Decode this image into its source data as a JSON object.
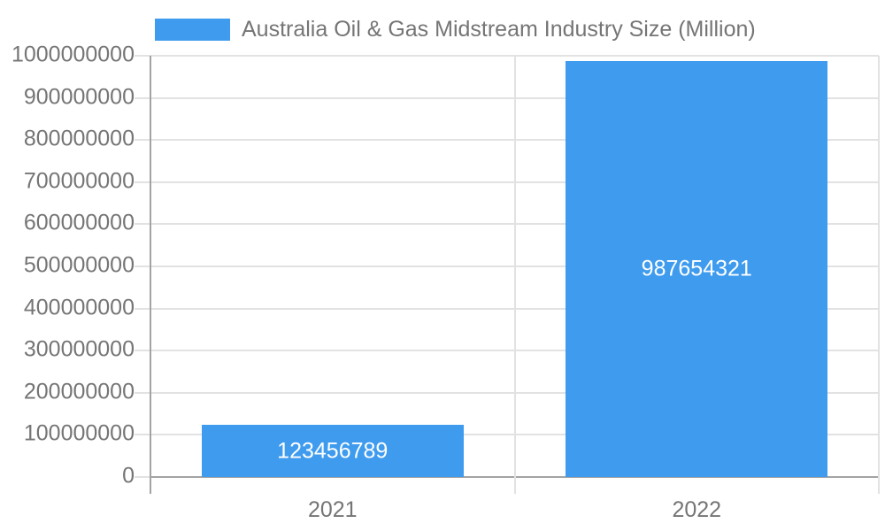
{
  "chart_data": {
    "type": "bar",
    "title": "Australia Oil & Gas Midstream Industry Size (Million)",
    "legend_position": "top",
    "legend_entries": [
      "Australia Oil & Gas Midstream Industry Size (Million)"
    ],
    "categories": [
      "2021",
      "2022"
    ],
    "series": [
      {
        "name": "Australia Oil & Gas Midstream Industry Size (Million)",
        "values": [
          123456789,
          987654321
        ]
      }
    ],
    "bar_value_labels": [
      "123456789",
      "987654321"
    ],
    "xlabel": "",
    "ylabel": "",
    "ylim": [
      0,
      1000000000
    ],
    "ytick_step": 100000000,
    "ytick_labels": [
      "0",
      "100000000",
      "200000000",
      "300000000",
      "400000000",
      "500000000",
      "600000000",
      "700000000",
      "800000000",
      "900000000",
      "1000000000"
    ],
    "grid": true,
    "colors": {
      "bar": "#3E9BEE",
      "label_text": "#757575",
      "bar_label_text": "#FFFFFF",
      "gridline": "#E2E2E2",
      "axis_line": "#A3A3A3"
    }
  }
}
